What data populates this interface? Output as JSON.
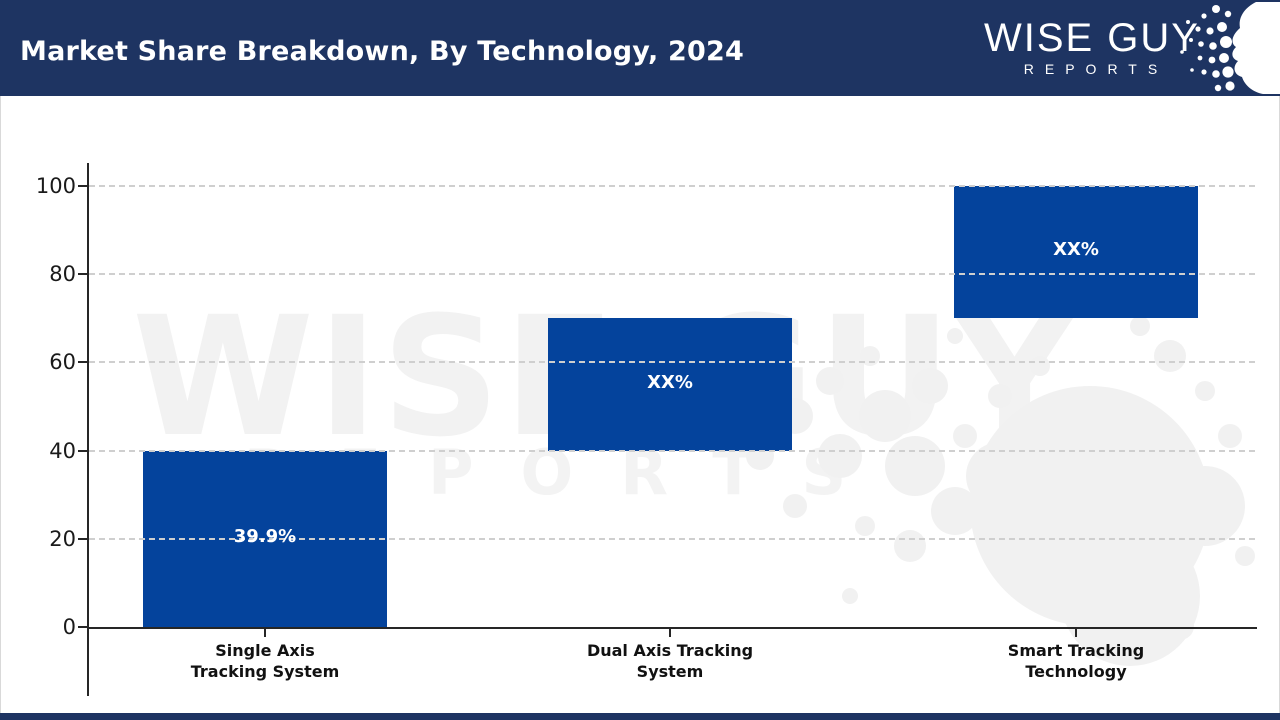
{
  "header": {
    "title": "Market Share Breakdown, By Technology, 2024",
    "logo": {
      "name": "WISE GUY",
      "subname": "REPORTS"
    }
  },
  "watermark": {
    "line1": "WISE GUY",
    "line2": "REPORTS"
  },
  "colors": {
    "banner_bg": "#1e3462",
    "bar_fill": "#04439c",
    "bar_label": "#ffffff",
    "axis": "#262626",
    "gridline": "#cfcfcf",
    "watermark": "#f2f2f2"
  },
  "chart_data": {
    "type": "bar",
    "variant": "floating-range segments (waterfall-style market share breakdown)",
    "title": "Market Share Breakdown, By Technology, 2024",
    "categories": [
      "Single Axis\nTracking System",
      "Dual Axis Tracking\nSystem",
      "Smart Tracking\nTechnology"
    ],
    "series": [
      {
        "name": "Market Share (%)",
        "segments": [
          {
            "category": "Single Axis Tracking System",
            "from": 0,
            "to": 40,
            "label": "39.9%"
          },
          {
            "category": "Dual Axis Tracking System",
            "from": 40,
            "to": 70,
            "label": "XX%"
          },
          {
            "category": "Smart Tracking Technology",
            "from": 70,
            "to": 100,
            "label": "XX%"
          }
        ]
      }
    ],
    "y_ticks": [
      0,
      20,
      40,
      60,
      80,
      100
    ],
    "ylim": [
      0,
      105
    ],
    "xlabel": "",
    "ylabel": "",
    "grid": "horizontal dashed, drawn above bars",
    "legend": "none",
    "bar_color": "#04439c",
    "bar_label_color": "#ffffff"
  }
}
